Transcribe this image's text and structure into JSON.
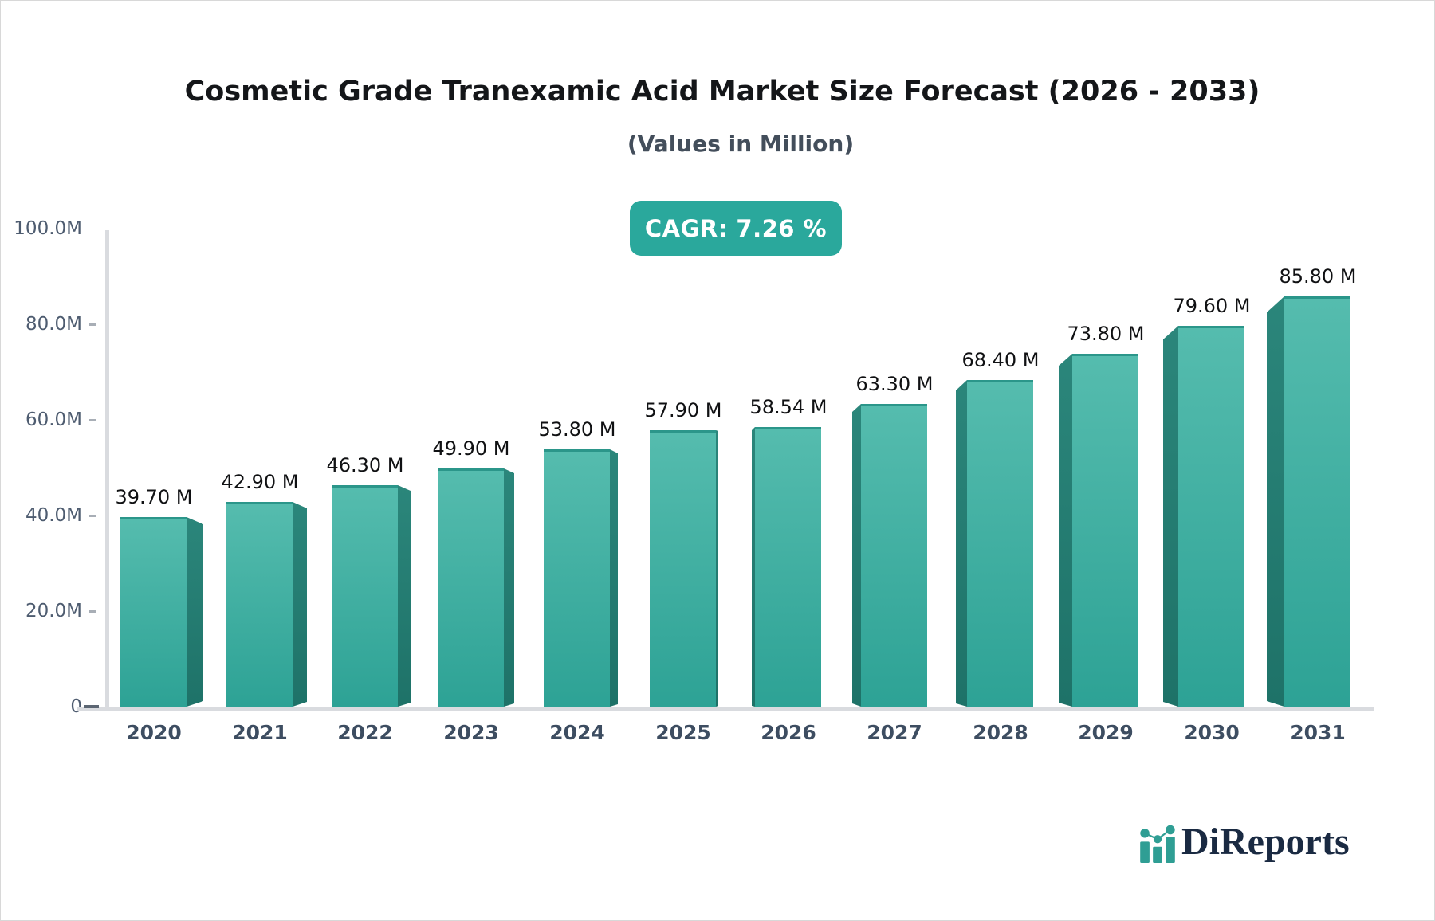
{
  "header": {
    "title": "Cosmetic Grade Tranexamic Acid Market Size Forecast (2026 - 2033)",
    "subtitle": "(Values in Million)"
  },
  "cagr_badge": {
    "label": "CAGR: 7.26 %"
  },
  "chart_data": {
    "type": "bar",
    "title": "Cosmetic Grade Tranexamic Acid Market Size Forecast (2026 - 2033)",
    "subtitle": "(Values in Million)",
    "unit": "Million",
    "cagr_percent": 7.26,
    "categories": [
      "2020",
      "2021",
      "2022",
      "2023",
      "2024",
      "2025",
      "2026",
      "2027",
      "2028",
      "2029",
      "2030",
      "2031"
    ],
    "values": [
      39.7,
      42.9,
      46.3,
      49.9,
      53.8,
      57.9,
      58.54,
      63.3,
      68.4,
      73.8,
      79.6,
      85.8
    ],
    "bar_labels": [
      "39.70 M",
      "42.90 M",
      "46.30 M",
      "49.90 M",
      "53.80 M",
      "57.90 M",
      "58.54 M",
      "63.30 M",
      "68.40 M",
      "73.80 M",
      "79.60 M",
      "85.80 M"
    ],
    "y_axis": {
      "tick_labels": [
        "100.0M",
        "80.0M",
        "60.0M",
        "40.0M",
        "20.0M",
        "0"
      ],
      "min": 0,
      "max": 100,
      "gridlines": false
    },
    "legend": "none",
    "colors": {
      "bar_front_top": "#55bcae",
      "bar_front_bottom": "#2da295",
      "bar_top_edge": "#2b968a",
      "bar_side_top": "#2b867b",
      "bar_side_bottom": "#1e7268",
      "badge": "#2aa89c",
      "axis": "#d9dbdf"
    }
  },
  "logo": {
    "text": "DiReports",
    "icon": "bar-line-chart-icon"
  }
}
